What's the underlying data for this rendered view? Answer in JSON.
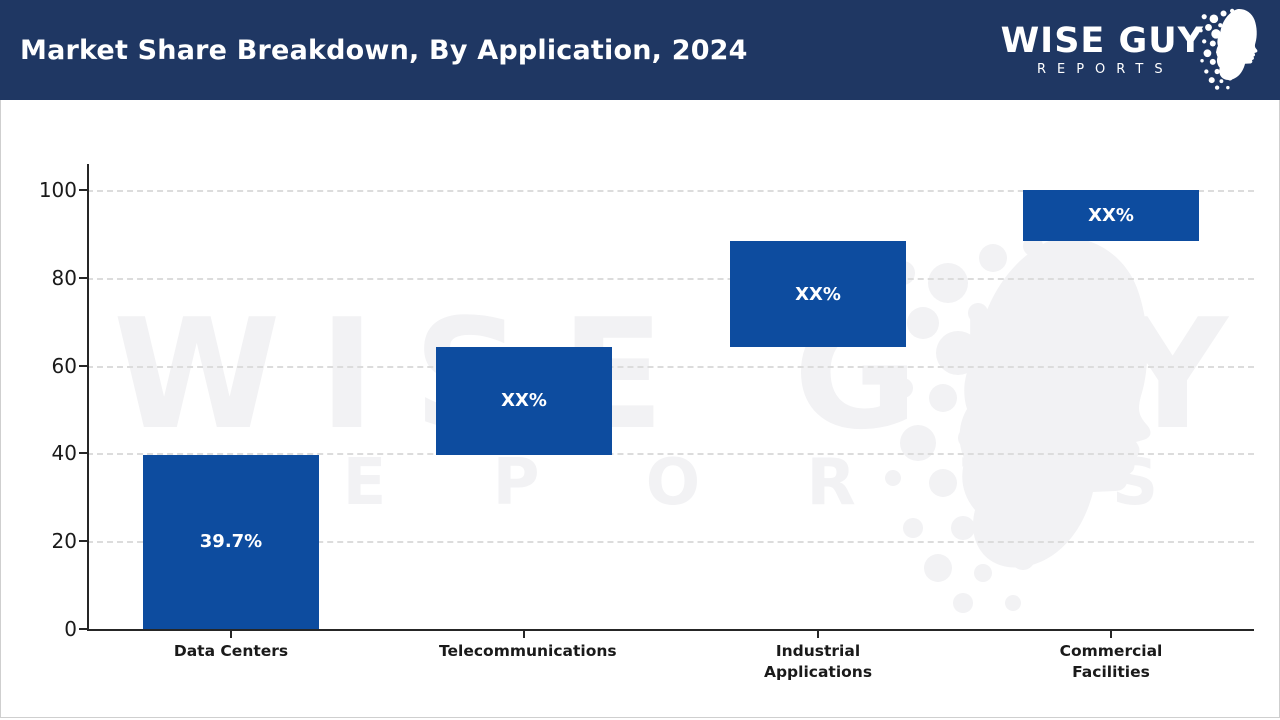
{
  "header": {
    "title": "Market Share Breakdown, By Application, 2024",
    "bg_color": "#1F3763",
    "logo": {
      "line1": "WISE GUY",
      "line2": "REPORTS"
    }
  },
  "watermark": {
    "line1": "WISE GUY",
    "line2": "R E P O R T S"
  },
  "chart_data": {
    "type": "bar",
    "subtype": "waterfall",
    "title": "Market Share Breakdown, By Application, 2024",
    "xlabel": "",
    "ylabel": "",
    "categories": [
      "Data Centers",
      "Telecommunications",
      "Industrial Applications",
      "Commercial Facilities"
    ],
    "segments": [
      {
        "category": "Data Centers",
        "start": 0,
        "end": 39.7,
        "label": "39.7%"
      },
      {
        "category": "Telecommunications",
        "start": 39.7,
        "end": 64.2,
        "label": "XX%"
      },
      {
        "category": "Industrial Applications",
        "start": 64.2,
        "end": 88.3,
        "label": "XX%"
      },
      {
        "category": "Commercial Facilities",
        "start": 88.3,
        "end": 100,
        "label": "XX%"
      }
    ],
    "yticks": [
      0,
      20,
      40,
      60,
      80,
      100
    ],
    "ylim": [
      0,
      106
    ],
    "bar_color": "#0D4C9F",
    "label_color": "#ffffff",
    "grid": "horizontal-dashed",
    "legend": "none"
  }
}
